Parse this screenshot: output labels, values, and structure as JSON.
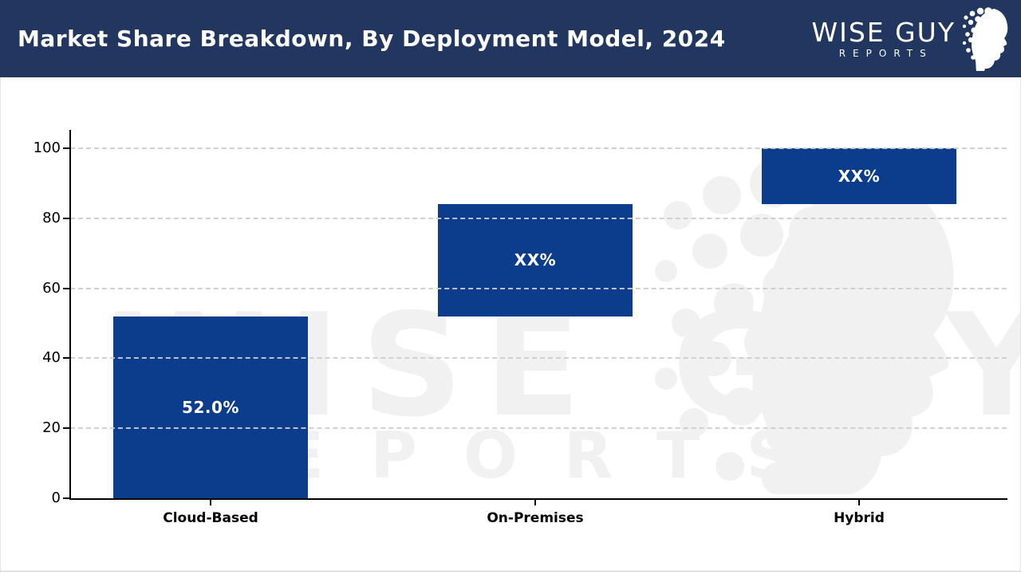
{
  "header": {
    "title": "Market Share Breakdown, By Deployment Model, 2024",
    "bg_color": "#21375f",
    "text_color": "#ffffff",
    "logo": {
      "name": "WISE GUY",
      "tagline": "REPORTS"
    }
  },
  "watermark": {
    "line1": "WISE GUY",
    "line2": "REPORTS"
  },
  "chart_data": {
    "type": "bar",
    "subtype": "stacked-waterfall",
    "title": "Market Share Breakdown, By Deployment Model, 2024",
    "categories": [
      "Cloud-Based",
      "On-Premises",
      "Hybrid"
    ],
    "bars": [
      {
        "category": "Cloud-Based",
        "start": 0,
        "end": 52,
        "value": 52.0,
        "label": "52.0%"
      },
      {
        "category": "On-Premises",
        "start": 52,
        "end": 84,
        "value": 32,
        "label": "XX%"
      },
      {
        "category": "Hybrid",
        "start": 84,
        "end": 100,
        "value": 16,
        "label": "XX%"
      }
    ],
    "xlabel": "",
    "ylabel": "",
    "ylim": [
      0,
      105
    ],
    "yticks": [
      0,
      20,
      40,
      60,
      80,
      100
    ],
    "grid": true,
    "grid_style": "dashed",
    "legend": "none",
    "bar_color": "#0c3c8c",
    "bar_label_color": "#ffffff"
  }
}
